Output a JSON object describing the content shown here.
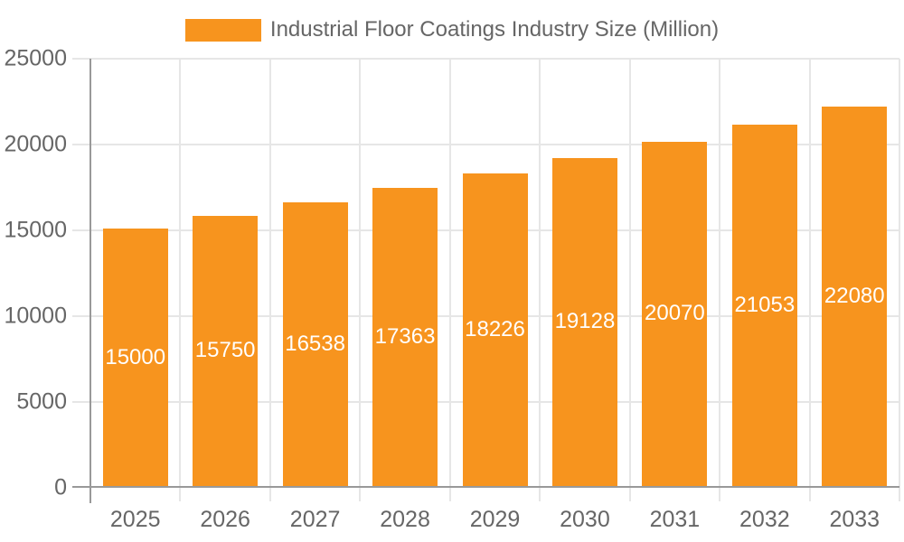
{
  "chart_data": {
    "type": "bar",
    "title": "Industrial Floor Coatings Industry Size (Million)",
    "legend_entries": [
      "Industrial Floor Coatings Industry Size (Million)"
    ],
    "legend_position": "top-center",
    "categories": [
      "2025",
      "2026",
      "2027",
      "2028",
      "2029",
      "2030",
      "2031",
      "2032",
      "2033"
    ],
    "values": [
      15000,
      15750,
      16538,
      17363,
      18226,
      19128,
      20070,
      21053,
      22080
    ],
    "bar_value_labels": [
      "15000",
      "15750",
      "16538",
      "17363",
      "18226",
      "19128",
      "20070",
      "21053",
      "22080"
    ],
    "xlabel": "",
    "ylabel": "",
    "ylim": [
      0,
      25000
    ],
    "yticks": [
      0,
      5000,
      10000,
      15000,
      20000,
      25000
    ],
    "ytick_labels": [
      "0",
      "5000",
      "10000",
      "15000",
      "20000",
      "25000"
    ],
    "grid": true,
    "colors": {
      "bar": "#f7941e",
      "bar_label_text": "#ffffff",
      "axis_text": "#666666",
      "axis_line": "#999999",
      "gridline": "#e6e6e6",
      "background": "#ffffff"
    }
  }
}
